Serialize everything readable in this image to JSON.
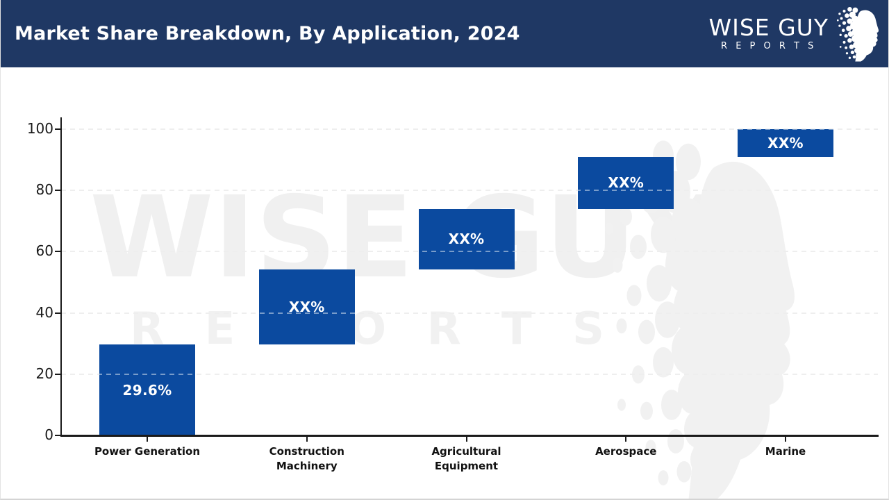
{
  "header": {
    "title": "Market Share Breakdown, By Application, 2024",
    "logo": {
      "brand": "WISE GUY",
      "sub": "R E P O R T S"
    }
  },
  "watermark": {
    "brand": "WISE GUY",
    "sub": "R E P O R T S"
  },
  "chart_data": {
    "type": "bar",
    "variant": "floating-waterfall",
    "title": "Market Share Breakdown, By Application, 2024",
    "categories": [
      "Power Generation",
      "Construction Machinery",
      "Agricultural Equipment",
      "Aerospace",
      "Marine"
    ],
    "bars": [
      {
        "category": "Power Generation",
        "start": 0,
        "end": 29.6,
        "label": "29.6%"
      },
      {
        "category": "Construction Machinery",
        "start": 29.6,
        "end": 54.3,
        "label": "XX%"
      },
      {
        "category": "Agricultural Equipment",
        "start": 54.3,
        "end": 74.0,
        "label": "XX%"
      },
      {
        "category": "Aerospace",
        "start": 74.0,
        "end": 91.0,
        "label": "XX%"
      },
      {
        "category": "Marine",
        "start": 91.0,
        "end": 100.0,
        "label": "XX%"
      }
    ],
    "xlabel": "",
    "ylabel": "",
    "ylim": [
      0,
      100
    ],
    "yticks": [
      0,
      20,
      40,
      60,
      80,
      100
    ],
    "grid": "horizontal-dashed",
    "legend": "none",
    "colors": {
      "bar": "#0b4a9f",
      "bar_label": "#ffffff",
      "header_bg": "#1f3864",
      "axis": "#1a1a1a",
      "gridline": "#e0e0e0",
      "tick_label": "#1a1a1a",
      "watermark": "#f0f0f0"
    }
  }
}
